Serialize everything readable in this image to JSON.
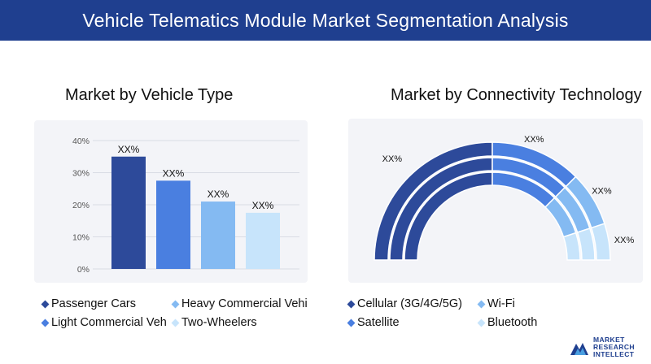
{
  "header": {
    "title": "Vehicle Telematics Module Market Segmentation Analysis"
  },
  "colors": {
    "header_bg": "#1f3f8f",
    "panel_bg": "#f3f4f8"
  },
  "chart_data": [
    {
      "type": "bar",
      "title": "Market by Vehicle Type",
      "categories": [
        "Passenger Cars",
        "Heavy Commercial Vehi",
        "Light Commercial Veh",
        "Two-Wheelers"
      ],
      "values": [
        35,
        27.5,
        21,
        17.5
      ],
      "data_labels": [
        "XX%",
        "XX%",
        "XX%",
        "XX%"
      ],
      "colors": [
        "#2d4a9a",
        "#4a7fe0",
        "#84baf2",
        "#c7e4fb"
      ],
      "yticks": [
        "0%",
        "10%",
        "20%",
        "30%",
        "40%"
      ],
      "ylim": [
        0,
        40
      ],
      "grid": true,
      "legend": [
        "Passenger Cars",
        "Heavy Commercial Vehi",
        "Light Commercial Veh",
        "Two-Wheelers"
      ]
    },
    {
      "type": "pie",
      "title": "Market by Connectivity Technology",
      "categories": [
        "Cellular (3G/4G/5G)",
        "Wi-Fi",
        "Satellite",
        "Bluetooth"
      ],
      "values": [
        50,
        25,
        15,
        10
      ],
      "data_labels": [
        "XX%",
        "XX%",
        "XX%",
        "XX%"
      ],
      "colors": [
        "#2d4a9a",
        "#4a7fe0",
        "#84baf2",
        "#c7e4fb"
      ],
      "legend": [
        "Cellular (3G/4G/5G)",
        "Wi-Fi",
        "Satellite",
        "Bluetooth"
      ]
    }
  ],
  "logo": {
    "line1": "MARKET",
    "line2": "RESEARCH",
    "line3": "INTELLECT"
  }
}
